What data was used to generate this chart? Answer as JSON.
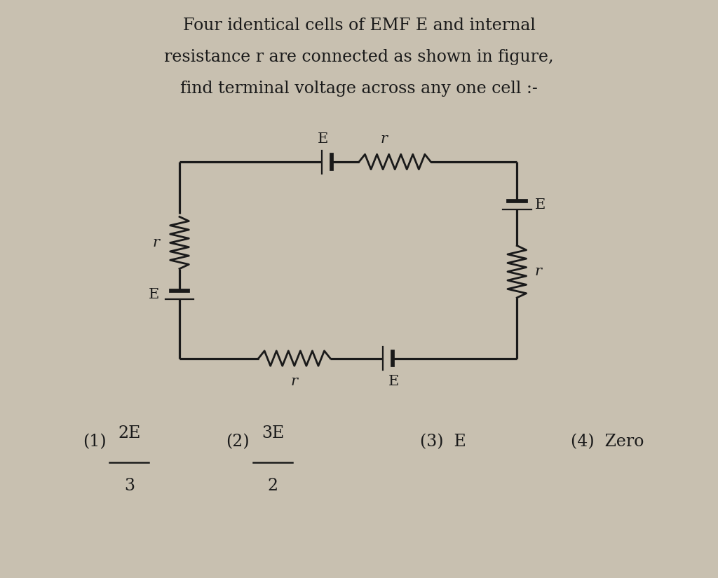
{
  "title_line1": "Four identical cells of EMF E and internal",
  "title_line2": "resistance r are connected as shown in figure,",
  "title_line3": "find terminal voltage across any one cell :-",
  "bg_color": "#c8c0b0",
  "text_color": "#1a1a1a",
  "options": [
    {
      "num": "(1)",
      "expr": "2E",
      "denom": "3"
    },
    {
      "num": "(2)",
      "expr": "3E",
      "denom": "2"
    },
    {
      "num": "(3)",
      "expr": "E",
      "denom": null
    },
    {
      "num": "(4)",
      "expr": "Zero",
      "denom": null
    }
  ]
}
